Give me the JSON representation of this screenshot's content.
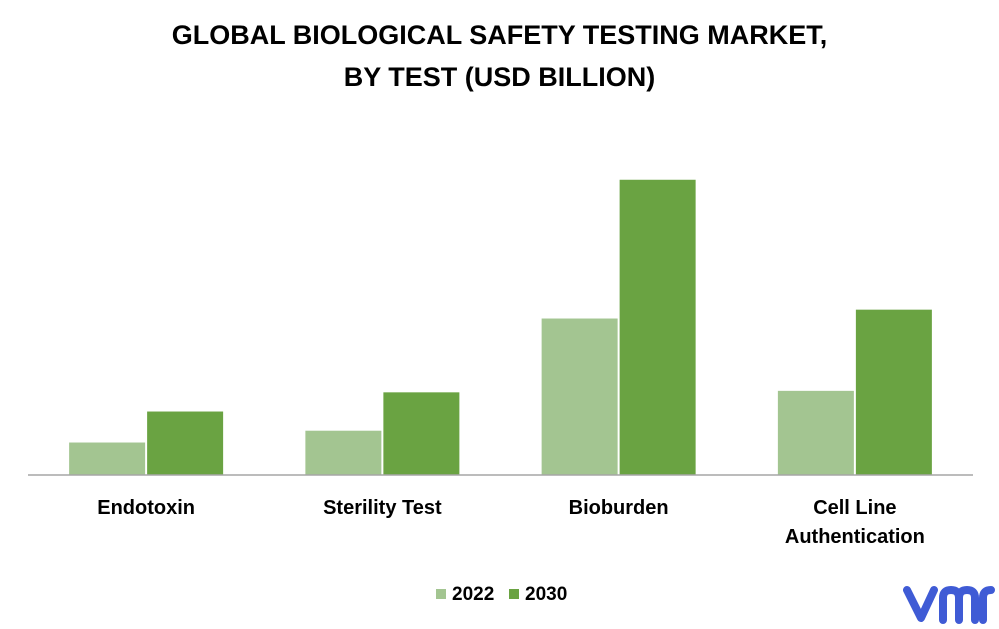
{
  "chart_data": {
    "type": "bar",
    "title": "GLOBAL BIOLOGICAL SAFETY TESTING MARKET,",
    "subtitle": "BY TEST (USD BILLION)",
    "categories": [
      "Endotoxin",
      "Sterility Test",
      "Bioburden",
      "Cell Line Authentication"
    ],
    "category_lines": [
      [
        "Endotoxin"
      ],
      [
        "Sterility Test"
      ],
      [
        "Bioburden"
      ],
      [
        "Cell Line",
        "Authentication"
      ]
    ],
    "series": [
      {
        "name": "2022",
        "values": [
          1.1,
          1.5,
          5.3,
          2.85
        ],
        "color": "#a3c591"
      },
      {
        "name": "2030",
        "values": [
          2.15,
          2.8,
          10.0,
          5.6
        ],
        "color": "#6aa342"
      }
    ],
    "ylim": [
      0,
      10.5
    ],
    "grid": false,
    "legend_position": "bottom-center",
    "xlabel": "",
    "ylabel": ""
  },
  "branding": {
    "logo_name": "vmr-logo",
    "logo_color": "#3f5bd5"
  }
}
